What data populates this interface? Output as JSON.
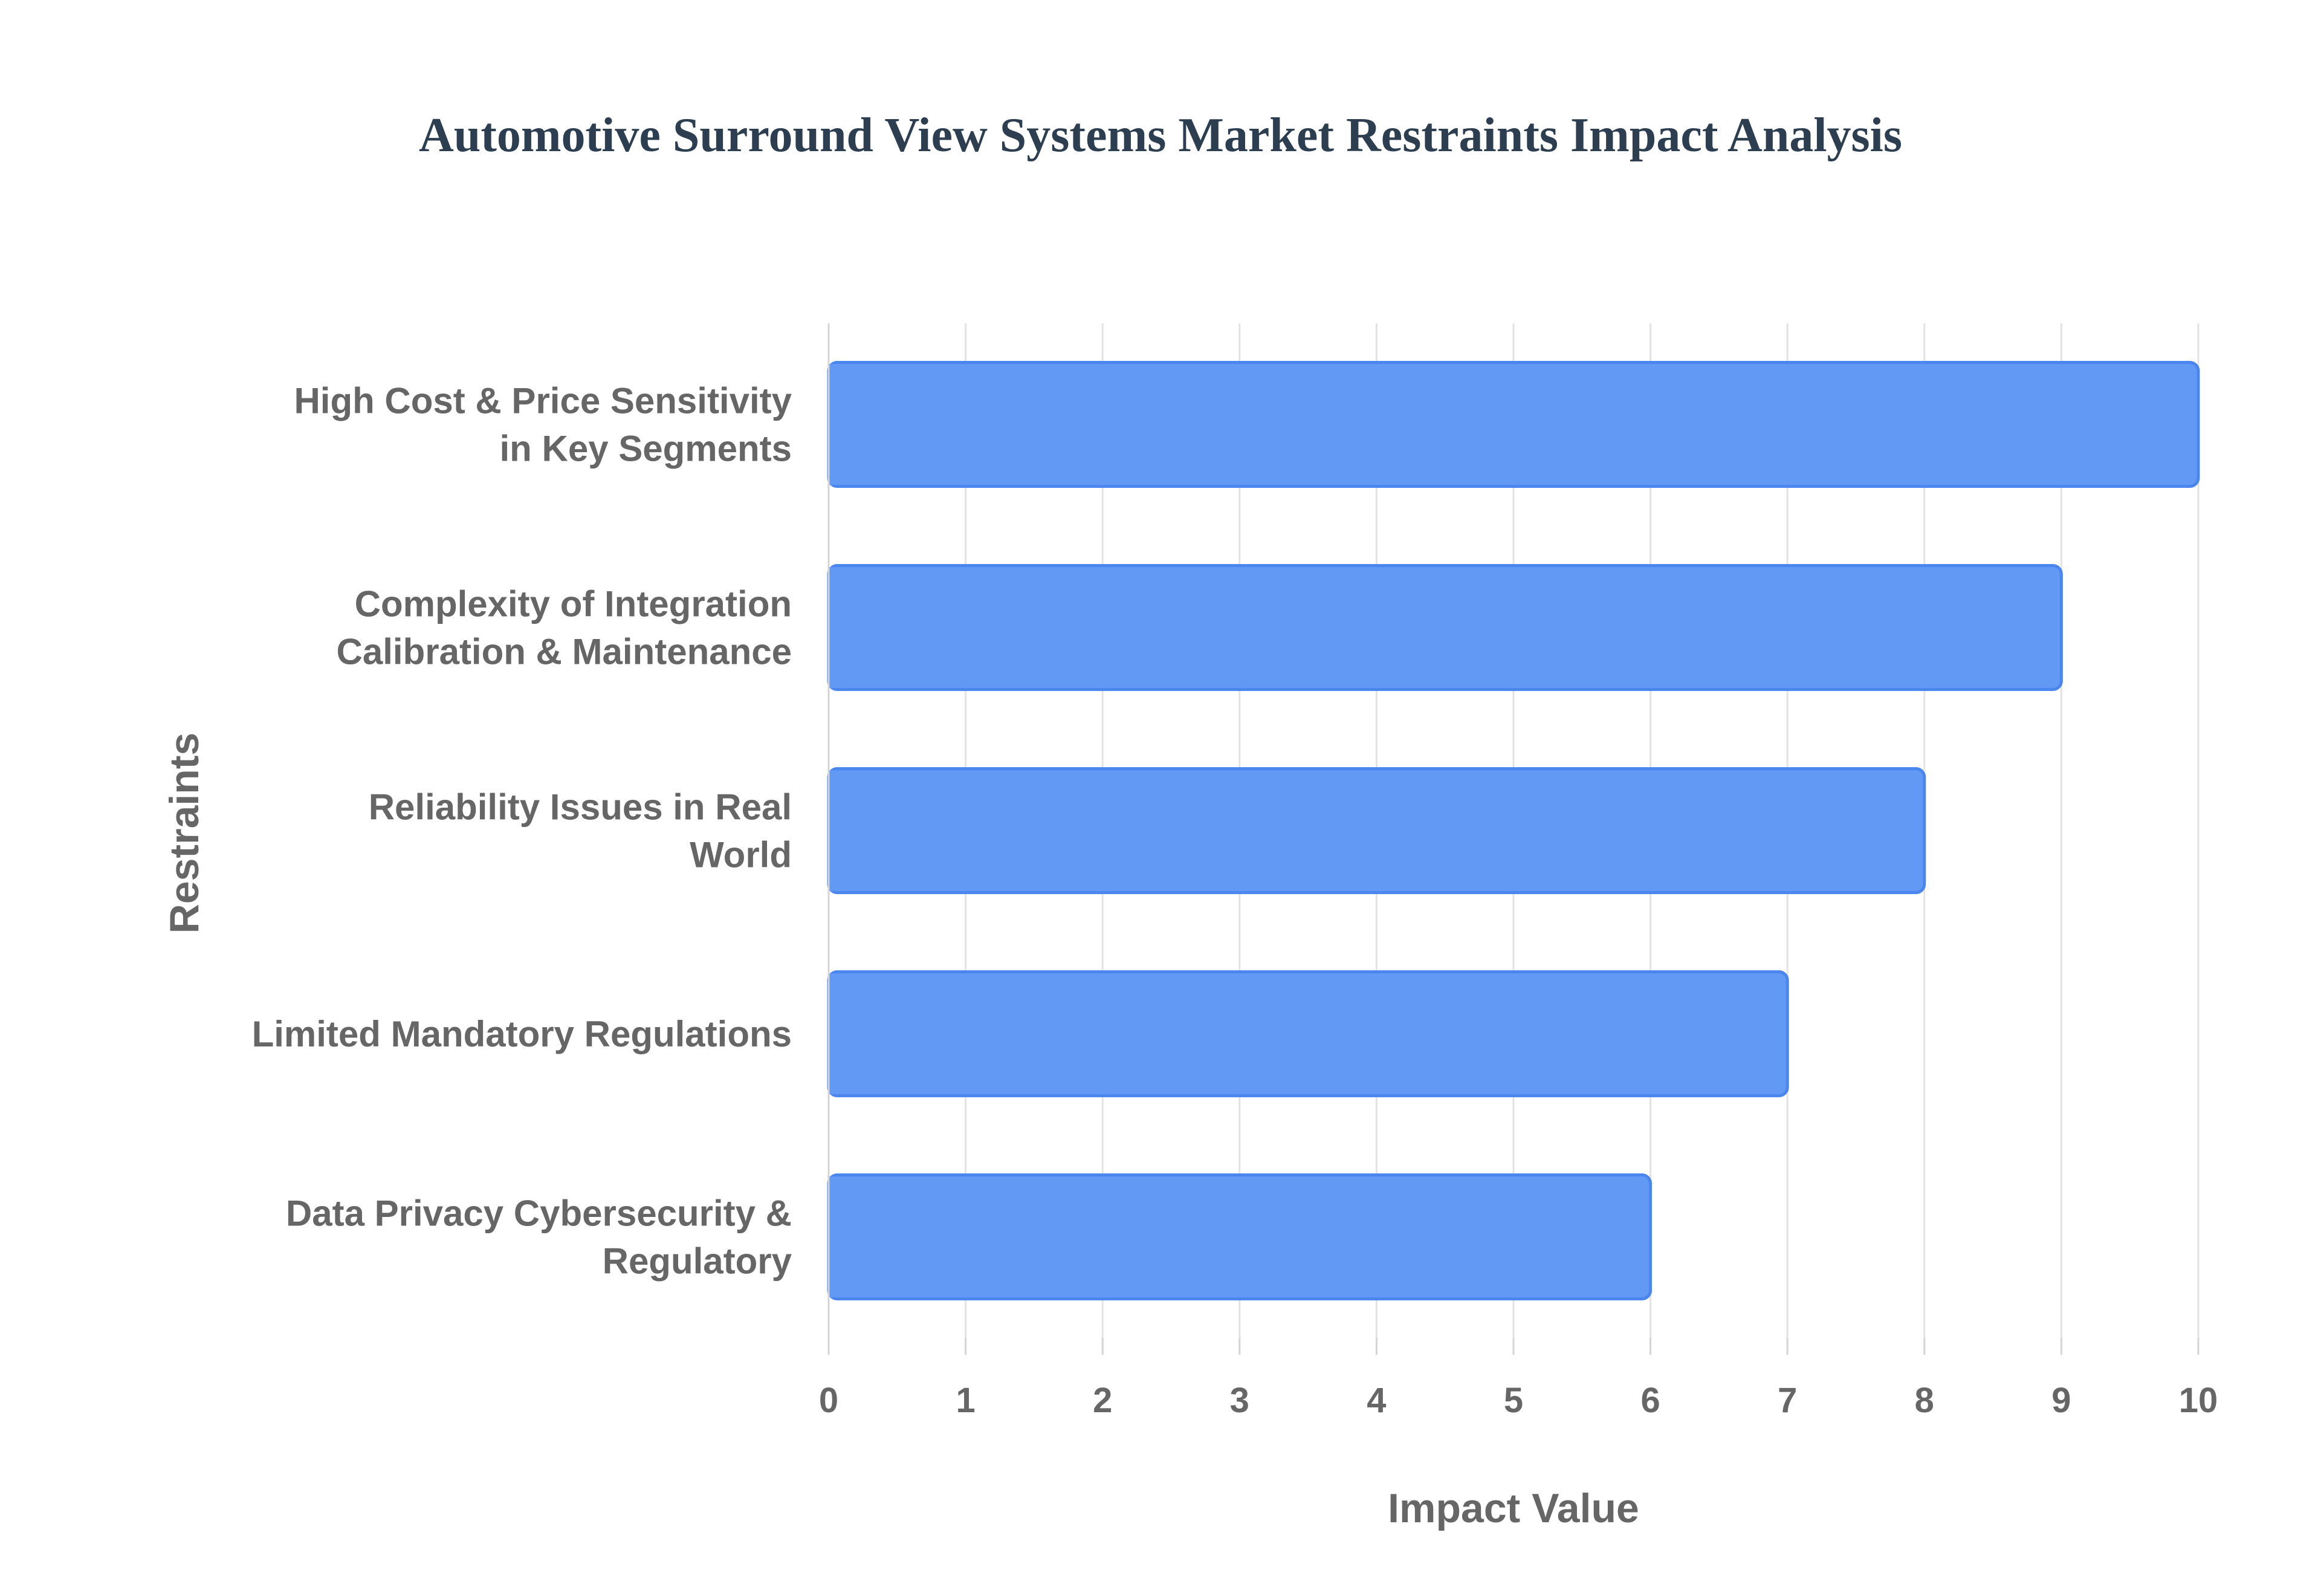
{
  "chart_data": {
    "type": "bar",
    "orientation": "horizontal",
    "title": "Automotive Surround View Systems Market Restraints Impact Analysis",
    "xlabel": "Impact Value",
    "ylabel": "Restraints",
    "xlim": [
      0,
      10
    ],
    "xticks": [
      "0",
      "1",
      "2",
      "3",
      "4",
      "5",
      "6",
      "7",
      "8",
      "9",
      "10"
    ],
    "grid": true,
    "legend": "none",
    "categories": [
      [
        "High Cost & Price Sensitivity",
        "in Key Segments"
      ],
      [
        "Complexity of Integration",
        "Calibration & Maintenance"
      ],
      [
        "Reliability Issues in Real",
        "World"
      ],
      [
        "Limited Mandatory Regulations"
      ],
      [
        "Data Privacy Cybersecurity &",
        "Regulatory"
      ]
    ],
    "values": [
      10,
      9,
      8,
      7,
      6
    ],
    "colors": {
      "bar_fill": "#6199f5",
      "bar_stroke": "#4a86ee",
      "title": "#2c3e50",
      "text": "#666666"
    }
  }
}
